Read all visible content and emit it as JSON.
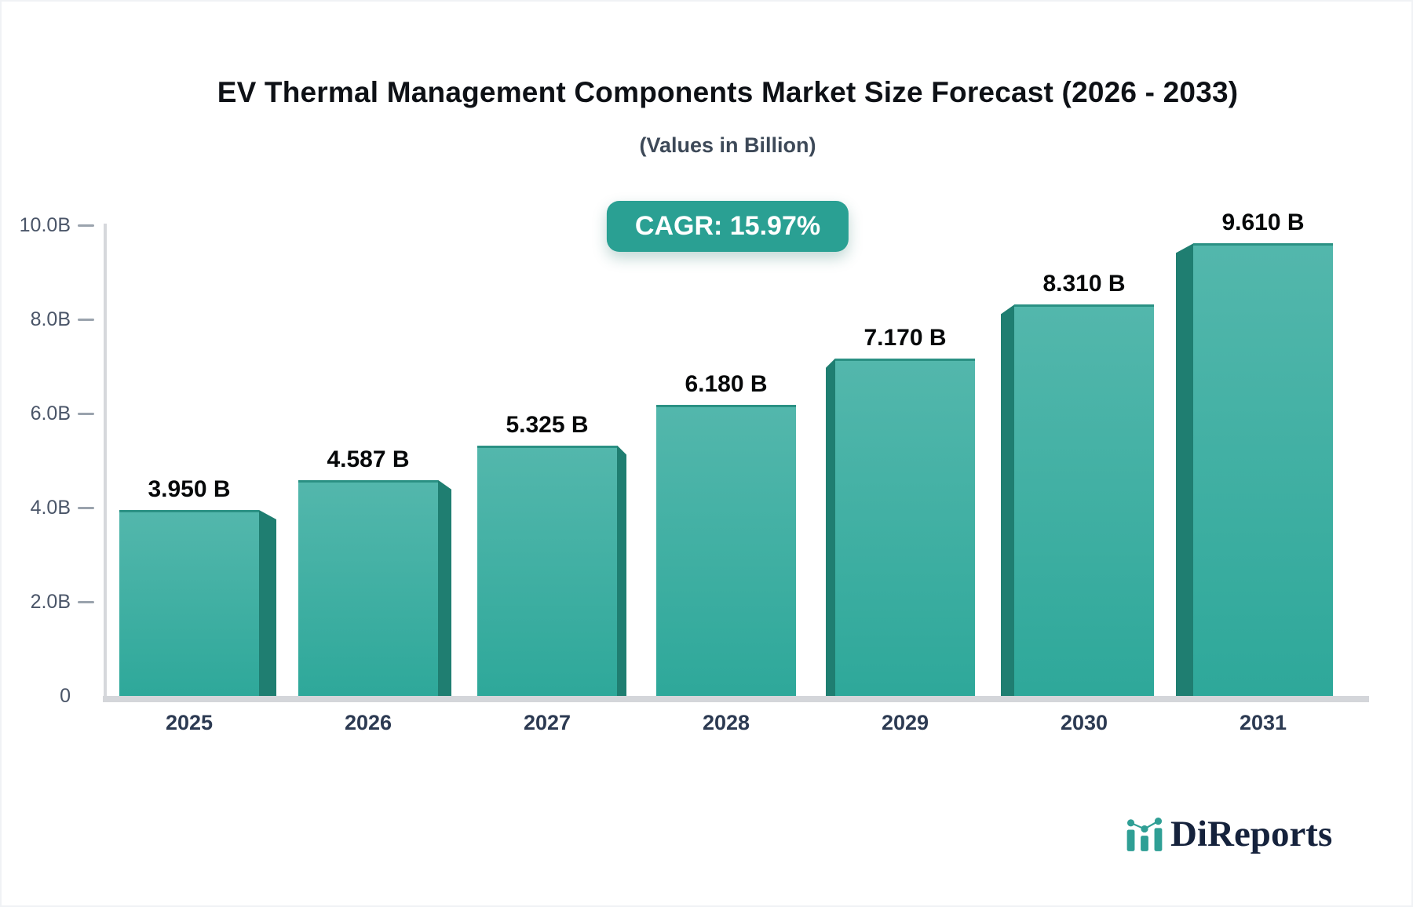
{
  "header": {
    "title": "EV Thermal Management Components Market Size Forecast (2026 - 2033)",
    "subtitle": "(Values in Billion)",
    "badge_label": "CAGR: 15.97%"
  },
  "chart_data": {
    "type": "bar",
    "title": "EV Thermal Management Components Market Size Forecast (2026 - 2033)",
    "subtitle": "(Values in Billion)",
    "annotation": "CAGR: 15.97%",
    "categories": [
      "2025",
      "2026",
      "2027",
      "2028",
      "2029",
      "2030",
      "2031"
    ],
    "values": [
      3.95,
      4.587,
      5.325,
      6.18,
      7.17,
      8.31,
      9.61
    ],
    "bar_labels": [
      "3.950 B",
      "4.587 B",
      "5.325 B",
      "6.180 B",
      "7.170 B",
      "8.310 B",
      "9.610 B"
    ],
    "unit": "Billion",
    "xlabel": "",
    "ylabel": "",
    "ylim": [
      0,
      10
    ],
    "grid": false,
    "legend": false,
    "y_ticks": [
      {
        "label": "10.0B",
        "value": 10
      },
      {
        "label": "8.0B",
        "value": 8
      },
      {
        "label": "6.0B",
        "value": 6
      },
      {
        "label": "4.0B",
        "value": 4
      },
      {
        "label": "2.0B",
        "value": 2
      },
      {
        "label": "0",
        "value": 0
      }
    ],
    "colors": {
      "bar_face_top": "#53b7ac",
      "bar_face_bottom": "#2ea89a",
      "bar_side": "#1f7e71",
      "bar_top_edge": "#2b9184",
      "badge_bg": "#2aa093",
      "baseline": "#d4d6da",
      "axis_line": "#d6d8dc",
      "tick": "#9aa3ad",
      "y_label_color": "#4a5568",
      "x_label_color": "#2c3a52",
      "brand_teal": "#2f9f95",
      "brand_navy": "#15223c"
    }
  },
  "branding": {
    "name": "DiReports",
    "icon": "mini-bar-chart-logo-icon"
  }
}
